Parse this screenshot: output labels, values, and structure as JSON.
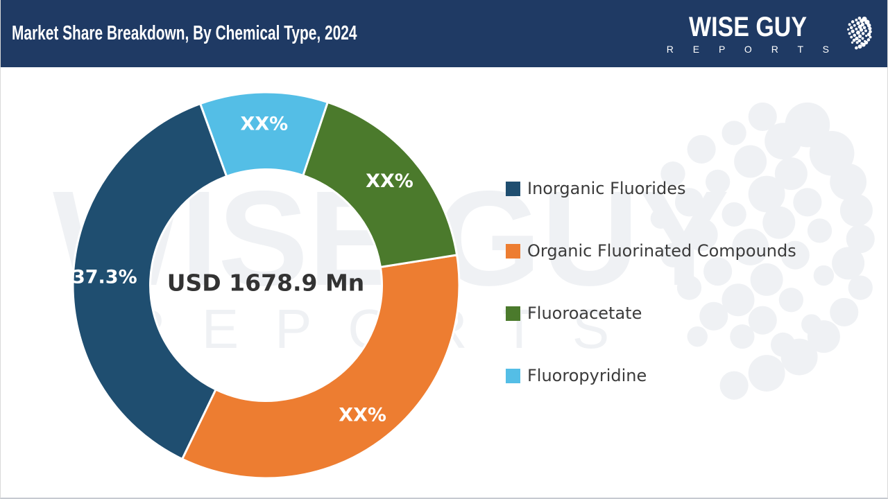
{
  "header": {
    "title": "Market Share Breakdown, By Chemical Type, 2024",
    "logo": {
      "line1": "WISE GUY",
      "line2": "R E P O R T S"
    }
  },
  "watermark": {
    "line1": "WISE GUY",
    "line2": "REPORTS"
  },
  "chart_data": {
    "type": "pie",
    "subtype": "donut",
    "title": "Market Share Breakdown, By Chemical Type, 2024",
    "center_label": "USD 1678.9 Mn",
    "legend_position": "right",
    "categories": [
      "Inorganic Fluorides",
      "Organic Fluorinated Compounds",
      "Fluoroacetate",
      "Fluoropyridine"
    ],
    "values": [
      37.3,
      34.6,
      17.3,
      10.8
    ],
    "segments": [
      {
        "label": "Inorganic Fluorides",
        "display_value": "37.3%",
        "value_pct": 37.3,
        "color": "#1f4e70",
        "start_deg": 205.7,
        "sweep_deg": 134.4
      },
      {
        "label": "Organic Fluorinated Compounds",
        "display_value": "XX%",
        "value_pct": 34.6,
        "color": "#ed7d31",
        "start_deg": 81.0,
        "sweep_deg": 124.7
      },
      {
        "label": "Fluoroacetate",
        "display_value": "XX%",
        "value_pct": 17.3,
        "color": "#4b7a2c",
        "start_deg": 18.6,
        "sweep_deg": 62.4
      },
      {
        "label": "Fluoropyridine",
        "display_value": "XX%",
        "value_pct": 10.8,
        "color": "#54bee6",
        "start_deg": 340.1,
        "sweep_deg": 38.5
      }
    ]
  },
  "colors": {
    "header_bg": "#1f3a64",
    "center_text": "#333333",
    "legend_text": "#3b3b3b",
    "watermark": "#eff1f4",
    "segment_separator": "#ffffff"
  }
}
